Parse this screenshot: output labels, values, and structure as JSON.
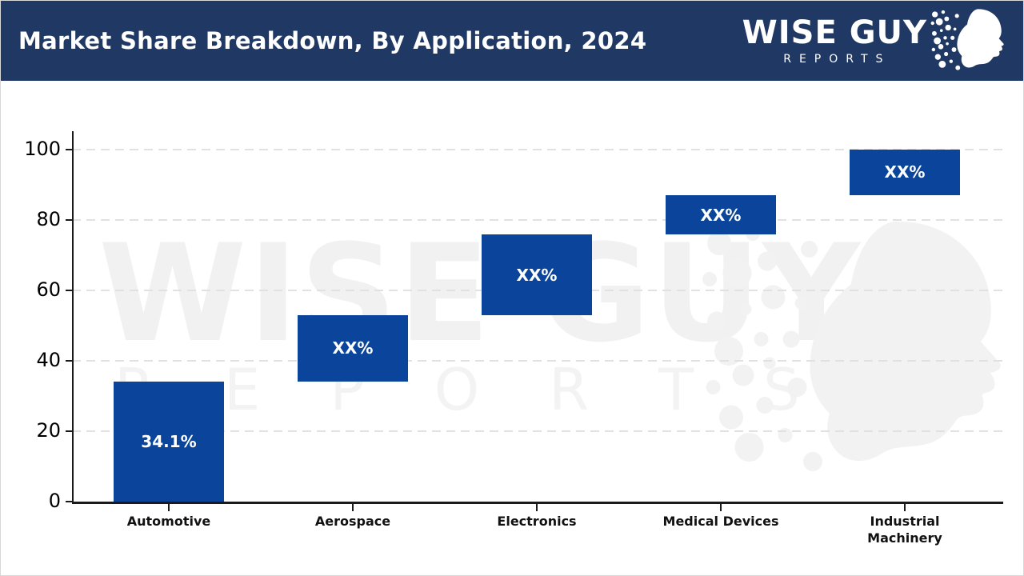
{
  "header": {
    "title": "Market Share Breakdown, By Application, 2024",
    "logo": {
      "line1": "WISE GUY",
      "line2": "REPORTS"
    }
  },
  "watermark": {
    "line1": "WISE GUY",
    "line2": "R E P O R T S"
  },
  "colors": {
    "header_bg": "#203864",
    "bar": "#0a449b",
    "axis": "#1a1a1a",
    "grid": "#e1e1e1",
    "watermark": "#f2f2f2"
  },
  "chart_data": {
    "type": "bar",
    "subtype": "waterfall",
    "title": "Market Share Breakdown, By Application, 2024",
    "categories": [
      "Automotive",
      "Aerospace",
      "Electronics",
      "Medical Devices",
      "Industrial Machinery"
    ],
    "segments": [
      {
        "category": "Automotive",
        "start": 0,
        "end": 34.1,
        "label": "34.1%"
      },
      {
        "category": "Aerospace",
        "start": 34.1,
        "end": 53.0,
        "label": "XX%"
      },
      {
        "category": "Electronics",
        "start": 53.0,
        "end": 75.8,
        "label": "XX%"
      },
      {
        "category": "Medical Devices",
        "start": 75.8,
        "end": 87.1,
        "label": "XX%"
      },
      {
        "category": "Industrial Machinery",
        "start": 87.1,
        "end": 100,
        "label": "XX%"
      }
    ],
    "ylim": [
      0,
      100
    ],
    "yticks": [
      0,
      20,
      40,
      60,
      80,
      100
    ],
    "xlabel": "",
    "ylabel": "",
    "grid": "dashed-horizontal",
    "legend": "none"
  }
}
